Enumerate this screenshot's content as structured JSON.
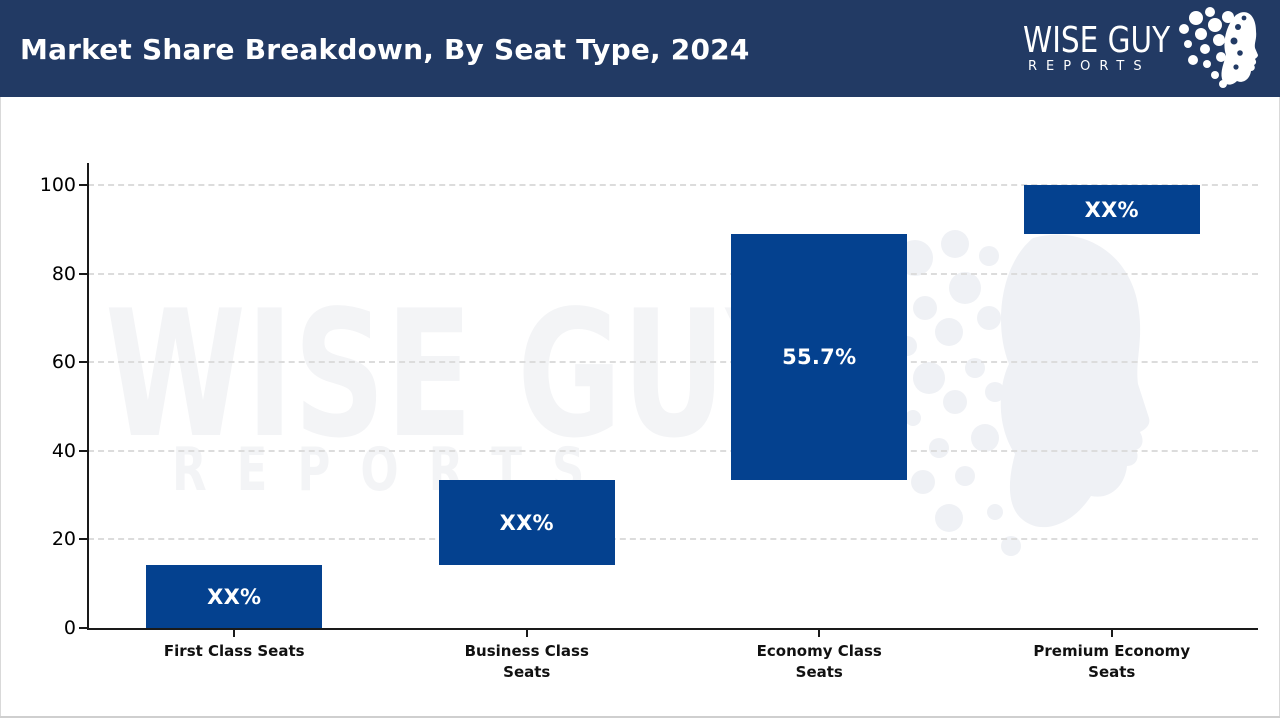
{
  "header": {
    "title": "Market Share Breakdown, By Seat Type, 2024",
    "logo": {
      "word": "WISE GUY",
      "sub": "REPORTS"
    }
  },
  "watermark": {
    "line1": "WISE GUY",
    "line2": "REPORTS"
  },
  "chart_data": {
    "type": "bar",
    "subtype": "waterfall",
    "title": "Market Share Breakdown, By Seat Type, 2024",
    "xlabel": "",
    "ylabel": "",
    "ylim": [
      0,
      100
    ],
    "yticks": [
      0,
      20,
      40,
      60,
      80,
      100
    ],
    "grid": "horizontal-dashed",
    "bar_color": "#04418f",
    "value_label_color": "#ffffff",
    "categories": [
      "First Class Seats",
      "Business Class Seats",
      "Economy Class Seats",
      "Premium Economy Seats"
    ],
    "bars": [
      {
        "category_lines": [
          "First Class Seats"
        ],
        "start": 0,
        "end": 14.2,
        "label": "XX%"
      },
      {
        "category_lines": [
          "Business Class",
          "Seats"
        ],
        "start": 14.2,
        "end": 33.4,
        "label": "XX%"
      },
      {
        "category_lines": [
          "Economy Class",
          "Seats"
        ],
        "start": 33.4,
        "end": 89.1,
        "label": "55.7%"
      },
      {
        "category_lines": [
          "Premium Economy",
          "Seats"
        ],
        "start": 89.1,
        "end": 100,
        "label": "XX%"
      }
    ]
  }
}
